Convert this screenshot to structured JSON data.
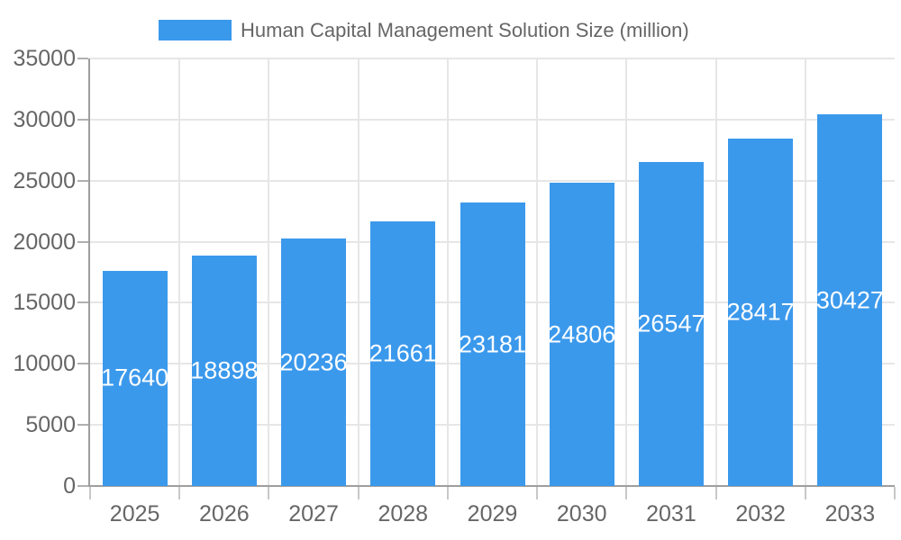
{
  "legend": {
    "label": "Human Capital Management Solution Size (million)"
  },
  "chart_data": {
    "type": "bar",
    "title": "",
    "series_name": "Human Capital Management Solution Size (million)",
    "categories": [
      "2025",
      "2026",
      "2027",
      "2028",
      "2029",
      "2030",
      "2031",
      "2032",
      "2033"
    ],
    "values": [
      17640,
      18898,
      20236,
      21661,
      23181,
      24806,
      26547,
      28417,
      30427
    ],
    "xlabel": "",
    "ylabel": "",
    "ylim": [
      0,
      35000
    ],
    "yticks": [
      0,
      5000,
      10000,
      15000,
      20000,
      25000,
      30000,
      35000
    ],
    "grid": true,
    "legend_position": "top",
    "value_labels": "inside-center",
    "colors": {
      "bar": "#3b99ec",
      "value_label": "#ffffff",
      "axis_text": "#666666",
      "gridline": "#e6e6e6",
      "axis_line": "#9e9e9e",
      "x_tick": "#c8c8c8",
      "y_tick": "#b0b0b0"
    }
  }
}
